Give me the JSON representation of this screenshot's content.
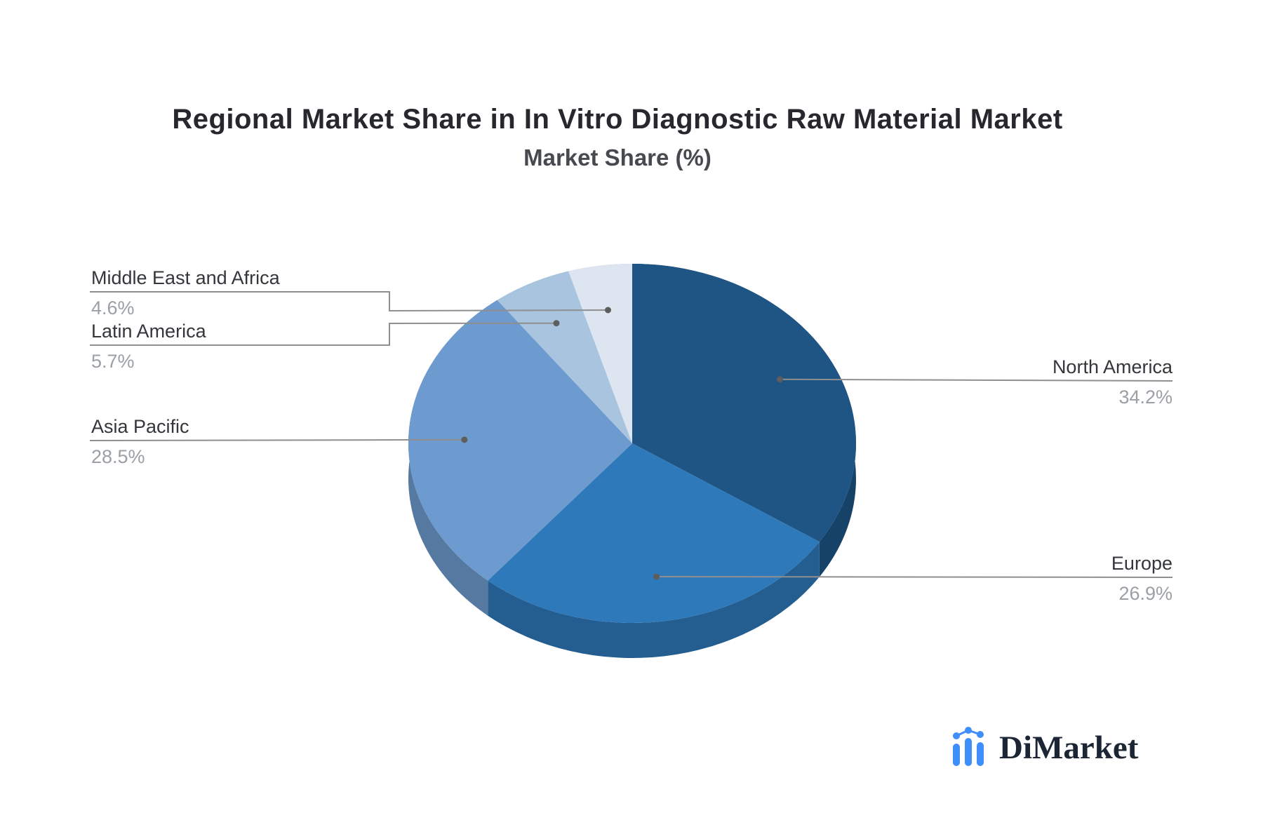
{
  "title": "Regional Market Share in In Vitro Diagnostic Raw Material Market",
  "subtitle": "Market Share (%)",
  "chart_data": {
    "type": "pie",
    "style": "3d-pie",
    "title": "Regional Market Share in In Vitro Diagnostic Raw Material Market",
    "subtitle": "Market Share (%)",
    "unit": "%",
    "start_angle": "12-o'clock",
    "direction": "clockwise",
    "slices": [
      {
        "label": "North America",
        "value": 34.2,
        "pct_label": "34.2%",
        "color": "#1e5585",
        "side": "right"
      },
      {
        "label": "Europe",
        "value": 26.9,
        "pct_label": "26.9%",
        "color": "#2e79ba",
        "side": "right"
      },
      {
        "label": "Asia Pacific",
        "value": 28.5,
        "pct_label": "28.5%",
        "color": "#6e9bcf",
        "side": "left"
      },
      {
        "label": "Latin America",
        "value": 5.7,
        "pct_label": "5.7%",
        "color": "#a8c4df",
        "side": "left"
      },
      {
        "label": "Middle East and Africa",
        "value": 4.6,
        "pct_label": "4.6%",
        "color": "#dde5f0",
        "side": "left"
      }
    ]
  },
  "branding": {
    "logo_text": "DiMarket",
    "logo_icon": "bar-line-chart-icon",
    "logo_blue": "#3f8efc",
    "logo_text_color": "#1c2533"
  },
  "colors": {
    "background": "#ffffff",
    "title_text": "#26282d",
    "subtitle_text": "#46494e",
    "label_text": "#33363b",
    "pct_text": "#9aa0a6",
    "leader_line": "#8f8f8f",
    "leader_dot": "#5d5d5d"
  }
}
